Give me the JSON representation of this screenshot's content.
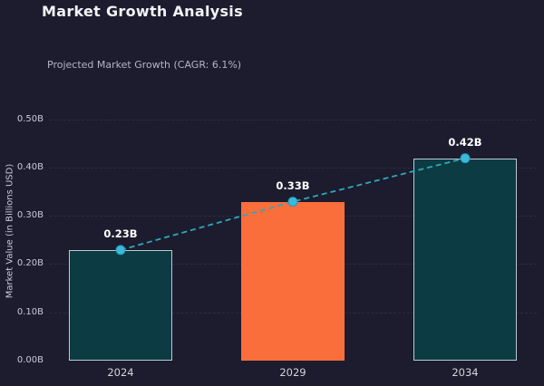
{
  "header": {
    "title": "Market Growth Analysis",
    "subtitle": "Projected Market Growth (CAGR: 6.1%)"
  },
  "colors": {
    "background": "#1c1c2e",
    "title_text": "#f2f2f7",
    "subtitle_text": "#b4b4c2",
    "tick_text": "#c9c9d6",
    "xtick_text": "#d4d4de",
    "label_text": "#ffffff",
    "grid": "rgba(255,255,255,0.08)",
    "bar_teal_fill": "#0d3b43",
    "bar_teal_border": "#b7ccd1",
    "bar_orange_fill": "#fa6e3c",
    "trend_line": "#2fa8b8",
    "marker_fill": "#3ab9d9",
    "marker_edge": "#2596b8"
  },
  "chart_data": {
    "type": "bar",
    "title": "Market Growth Analysis",
    "subtitle": "Projected Market Growth (CAGR: 6.1%)",
    "categories": [
      "2024",
      "2029",
      "2034"
    ],
    "values": [
      0.23,
      0.33,
      0.42
    ],
    "value_labels": [
      "0.23B",
      "0.33B",
      "0.42B"
    ],
    "bar_styles": [
      "teal",
      "orange",
      "teal"
    ],
    "trend_series": {
      "name": "projected-growth-trend",
      "values": [
        0.23,
        0.33,
        0.42
      ],
      "style": "dashed-line-with-round-markers"
    },
    "xlabel": "",
    "ylabel": "Market Value (in Billions USD)",
    "ylim": [
      0,
      0.5
    ],
    "ytick_step": 0.1,
    "yticks": [
      "0.00B",
      "0.10B",
      "0.20B",
      "0.30B",
      "0.40B",
      "0.50B"
    ],
    "grid": "faint-dashed-horizontal",
    "legend": "none"
  }
}
